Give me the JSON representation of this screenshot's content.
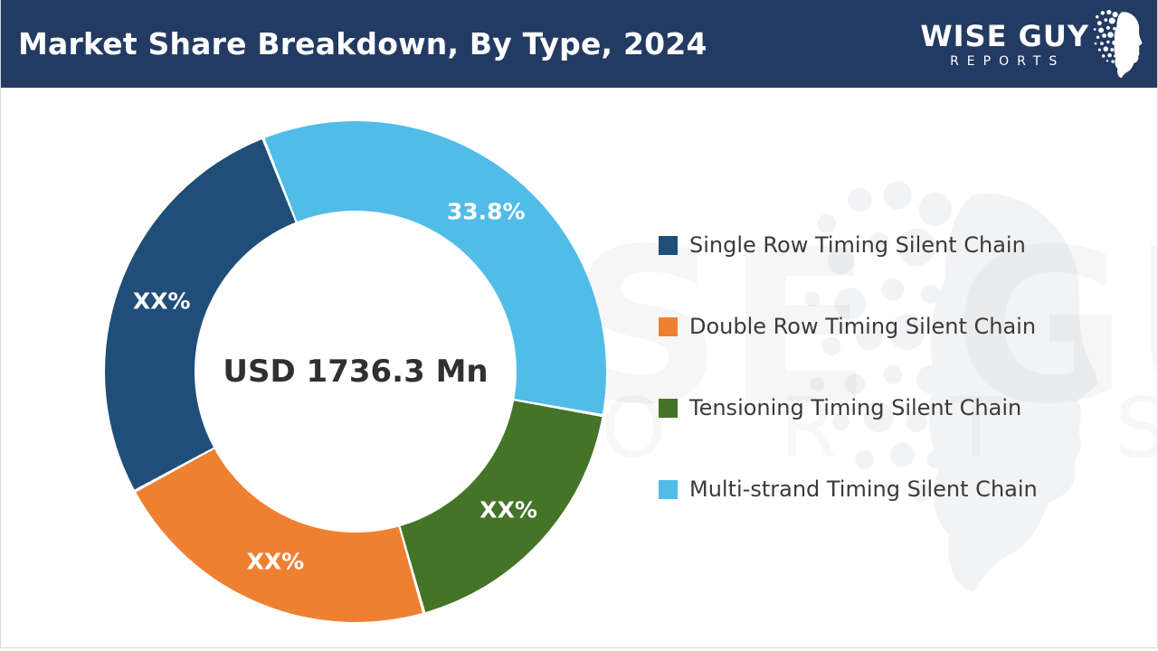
{
  "header": {
    "title": "Market Share Breakdown, By Type, 2024",
    "logo": {
      "brand_line1": "WISE GUY",
      "brand_line2": "REPORTS"
    }
  },
  "watermark": {
    "line1": "WISE GU",
    "line2": "E P O R T S"
  },
  "chart_data": {
    "type": "pie",
    "subtype": "donut",
    "title": "Market Share Breakdown, By Type, 2024",
    "center_label": "USD 1736.3 Mn",
    "start_angle_deg": -21.6,
    "direction": "clockwise",
    "legend_position": "right",
    "slices": [
      {
        "name": "Multi-strand Timing Silent Chain",
        "value_pct": 33.8,
        "label": "33.8%",
        "color": "#51BCE8"
      },
      {
        "name": "Tensioning Timing Silent Chain",
        "value_pct": 17.8,
        "label": "XX%",
        "color": "#447428"
      },
      {
        "name": "Double Row Timing Silent Chain",
        "value_pct": 21.5,
        "label": "XX%",
        "color": "#EF8032"
      },
      {
        "name": "Single Row Timing Silent Chain",
        "value_pct": 26.9,
        "label": "XX%",
        "color": "#1F4E79"
      }
    ]
  },
  "legend": {
    "items": [
      {
        "label": "Single Row Timing Silent Chain",
        "color": "#1F4E79"
      },
      {
        "label": "Double Row Timing Silent Chain",
        "color": "#EF8032"
      },
      {
        "label": "Tensioning Timing Silent Chain",
        "color": "#447428"
      },
      {
        "label": "Multi-strand Timing Silent Chain",
        "color": "#51BCE8"
      }
    ]
  },
  "colors": {
    "header_bg": "#233A63",
    "page_bg": "#FFFFFF",
    "center_text": "#303030",
    "legend_text": "#3A3A3A",
    "slice_label_text": "#FFFFFF",
    "frame_border": "#D9D9D9"
  }
}
